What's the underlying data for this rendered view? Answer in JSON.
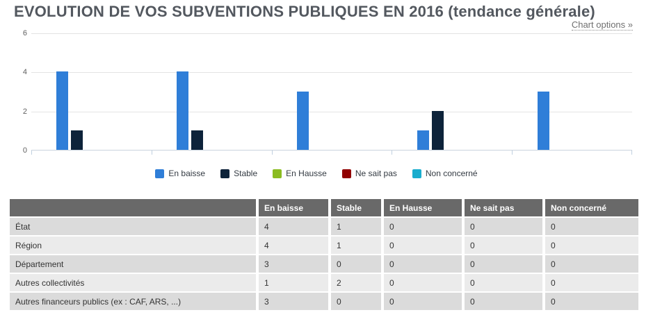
{
  "title": "EVOLUTION DE VOS SUBVENTIONS PUBLIQUES EN 2016 (tendance générale)",
  "chart_options_label": "Chart options »",
  "chart_data": {
    "type": "bar",
    "categories": [
      "État",
      "Région",
      "Département",
      "Autres collectivités",
      "Autres financeurs publics (ex : CAF, ARS, ...)"
    ],
    "series": [
      {
        "name": "En baisse",
        "color": "#2f7ed8",
        "values": [
          4,
          4,
          3,
          1,
          3
        ]
      },
      {
        "name": "Stable",
        "color": "#0d233a",
        "values": [
          1,
          1,
          0,
          2,
          0
        ]
      },
      {
        "name": "En Hausse",
        "color": "#8bbc21",
        "values": [
          0,
          0,
          0,
          0,
          0
        ]
      },
      {
        "name": "Ne sait pas",
        "color": "#910000",
        "values": [
          0,
          0,
          0,
          0,
          0
        ]
      },
      {
        "name": "Non concerné",
        "color": "#1aadce",
        "values": [
          0,
          0,
          0,
          0,
          0
        ]
      }
    ],
    "title": "EVOLUTION DE VOS SUBVENTIONS PUBLIQUES EN 2016 (tendance générale)",
    "xlabel": "",
    "ylabel": "",
    "ylim": [
      0,
      6
    ],
    "yticks": [
      0,
      2,
      4,
      6
    ],
    "grid": true,
    "legend_position": "bottom",
    "x_axis_labels_visible": false
  },
  "table": {
    "columns": [
      "",
      "En baisse",
      "Stable",
      "En Hausse",
      "Ne sait pas",
      "Non concerné"
    ],
    "rows": [
      {
        "label": "État",
        "values": [
          "4",
          "1",
          "0",
          "0",
          "0"
        ]
      },
      {
        "label": "Région",
        "values": [
          "4",
          "1",
          "0",
          "0",
          "0"
        ]
      },
      {
        "label": "Département",
        "values": [
          "3",
          "0",
          "0",
          "0",
          "0"
        ]
      },
      {
        "label": "Autres collectivités",
        "values": [
          "1",
          "2",
          "0",
          "0",
          "0"
        ]
      },
      {
        "label": "Autres financeurs publics (ex : CAF, ARS, ...)",
        "values": [
          "3",
          "0",
          "0",
          "0",
          "0"
        ]
      }
    ]
  },
  "colors": {
    "grid_line": "#e3e3e3",
    "axis_line": "#c0d0e0",
    "table_header_bg": "#696969",
    "table_row_odd_bg": "#dbdbdb",
    "table_row_even_bg": "#ebebeb",
    "title_text": "#53585f",
    "link_text": "#6f6f6f"
  }
}
